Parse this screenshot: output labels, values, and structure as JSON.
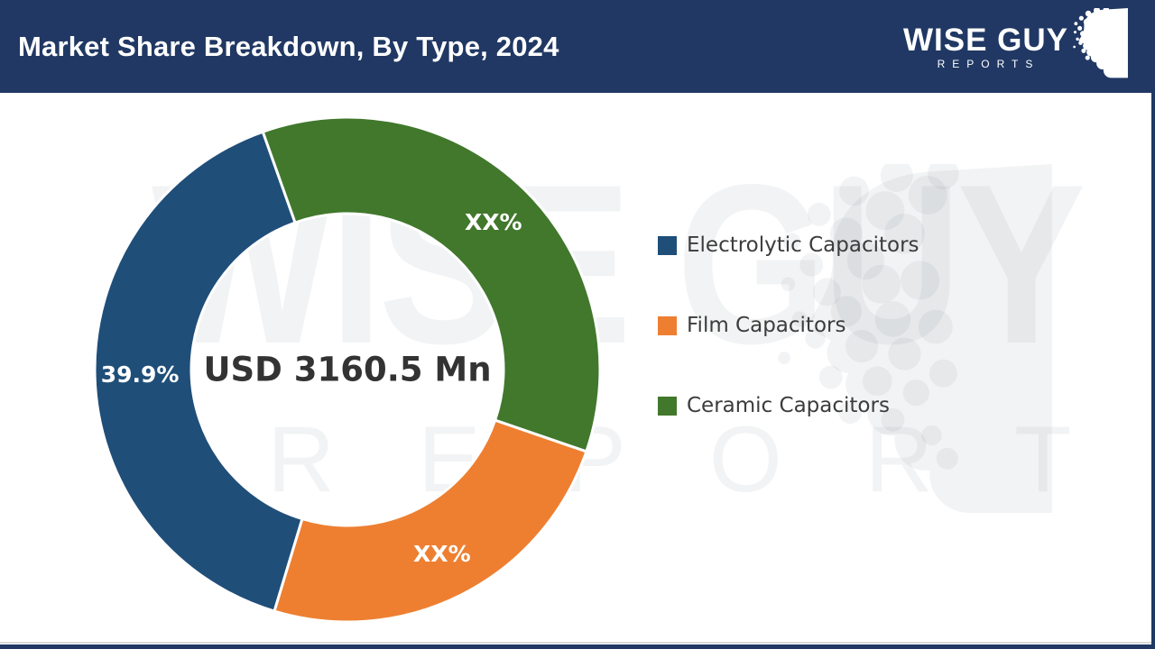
{
  "header": {
    "title": "Market Share Breakdown, By Type, 2024"
  },
  "logo": {
    "line1": "WISE GUY",
    "line2": "REPORTS"
  },
  "colors": {
    "header_bg": "#203863",
    "slice_blue": "#1F4E79",
    "slice_orange": "#EE7F31",
    "slice_green": "#41782C",
    "slice_label_text": "#ffffff",
    "center_text": "#333333",
    "legend_text": "#3c3c3c"
  },
  "chart_data": {
    "type": "pie",
    "subtype": "donut",
    "center_label": "USD 3160.5 Mn",
    "start_angle": 253.2,
    "direction": "clockwise",
    "inner_radius_ratio": 0.62,
    "slices": [
      {
        "name": "Electrolytic Capacitors",
        "value": 39.9,
        "label": "39.9%",
        "color": "#1F4E79"
      },
      {
        "name": "Ceramic Capacitors",
        "value": 35.7,
        "label": "XX%",
        "color": "#41782C"
      },
      {
        "name": "Film Capacitors",
        "value": 24.4,
        "label": "XX%",
        "color": "#EE7F31"
      }
    ],
    "legend": [
      {
        "label": "Electrolytic Capacitors",
        "color": "#1F4E79"
      },
      {
        "label": "Film Capacitors",
        "color": "#EE7F31"
      },
      {
        "label": "Ceramic Capacitors",
        "color": "#41782C"
      }
    ],
    "legend_position": "right"
  }
}
